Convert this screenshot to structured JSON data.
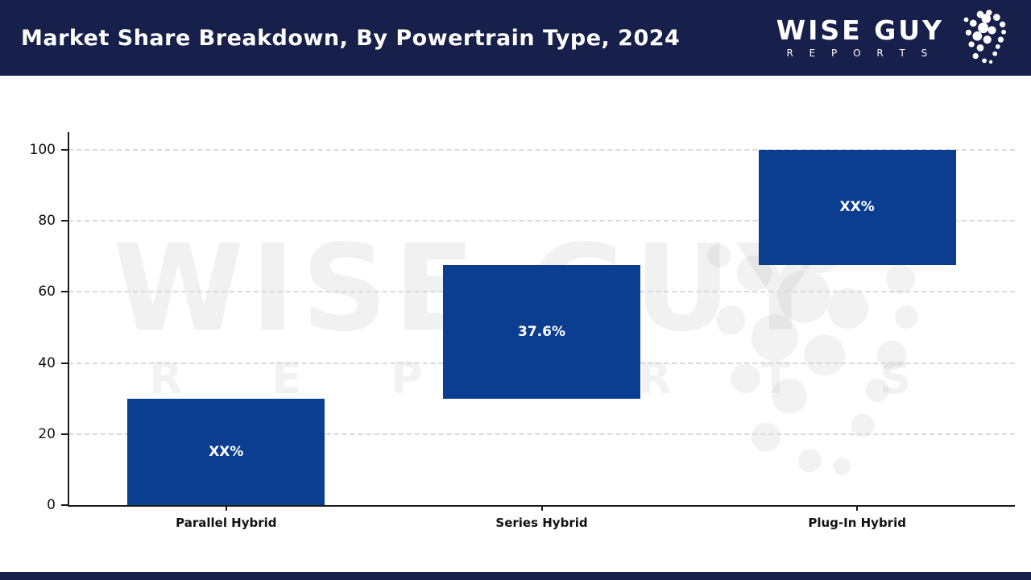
{
  "header": {
    "title": "Market Share Breakdown, By Powertrain Type, 2024",
    "bg_color": "#171f4b",
    "logo": {
      "line1": "WISE GUY",
      "line2": "R E P O R T S"
    }
  },
  "watermark": {
    "line1": "WISE GUY",
    "line2": "R E P O R T S"
  },
  "chart_data": {
    "type": "bar",
    "subtype": "waterfall",
    "title": "Market Share Breakdown, By Powertrain Type, 2024",
    "categories": [
      "Parallel Hybrid",
      "Series Hybrid",
      "Plug-In Hybrid"
    ],
    "series": [
      {
        "name": "Market Share",
        "base": [
          0,
          30,
          67.6
        ],
        "top": [
          30,
          67.6,
          100
        ],
        "segment_values": [
          30,
          37.6,
          32.4
        ]
      }
    ],
    "bar_labels": [
      "XX%",
      "37.6%",
      "XX%"
    ],
    "bar_color": "#0b3d91",
    "xlabel": "",
    "ylabel": "",
    "yticks": [
      0,
      20,
      40,
      60,
      80,
      100
    ],
    "ylim": [
      0,
      105
    ],
    "grid": "horizontal-dashed",
    "legend": "none"
  }
}
